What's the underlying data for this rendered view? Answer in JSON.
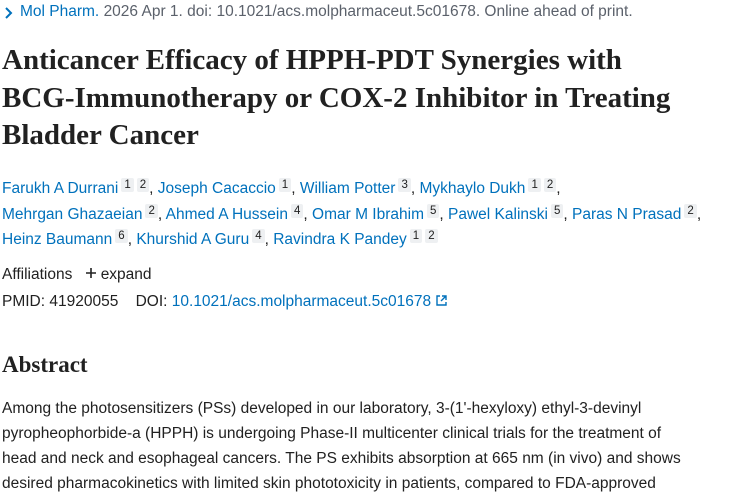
{
  "header": {
    "journal": "Mol Pharm.",
    "citation": "2026 Apr 1. doi: 10.1021/acs.molpharmaceut.5c01678. Online ahead of print."
  },
  "title": [
    "Anticancer Efficacy of HPPH-PDT Synergies with",
    "BCG-Immunotherapy or COX-2 Inhibitor in Treating",
    "Bladder Cancer"
  ],
  "authors_separator": ",",
  "author_lines": [
    [
      {
        "name": "Farukh A Durrani",
        "affiliations": [
          "1",
          "2"
        ]
      },
      {
        "name": "Joseph Cacaccio",
        "affiliations": [
          "1"
        ]
      },
      {
        "name": "William Potter",
        "affiliations": [
          "3"
        ]
      },
      {
        "name": "Mykhaylo Dukh",
        "affiliations": [
          "1",
          "2"
        ]
      }
    ],
    [
      {
        "name": "Mehrgan Ghazaeian",
        "affiliations": [
          "2"
        ]
      },
      {
        "name": "Ahmed A Hussein",
        "affiliations": [
          "4"
        ]
      },
      {
        "name": "Omar M Ibrahim",
        "affiliations": [
          "5"
        ]
      },
      {
        "name": "Pawel Kalinski",
        "affiliations": [
          "5"
        ]
      },
      {
        "name": "Paras N Prasad",
        "affiliations": [
          "2"
        ]
      }
    ],
    [
      {
        "name": "Heinz Baumann",
        "affiliations": [
          "6"
        ]
      },
      {
        "name": "Khurshid A Guru",
        "affiliations": [
          "4"
        ]
      },
      {
        "name": "Ravindra K Pandey",
        "affiliations": [
          "1",
          "2"
        ]
      }
    ]
  ],
  "affiliations": {
    "label": "Affiliations",
    "expand": "expand"
  },
  "identifiers": {
    "pmid_label": "PMID:",
    "pmid": "41920055",
    "doi_label": "DOI:",
    "doi": "10.1021/acs.molpharmaceut.5c01678"
  },
  "abstract": {
    "heading": "Abstract",
    "lines": [
      "Among the photosensitizers (PSs) developed in our laboratory, 3-(1'-hexyloxy) ethyl-3-devinyl",
      "pyropheophorbide-a (HPPH) is undergoing Phase-II multicenter clinical trials for the treatment of",
      "head and neck and esophageal cancers. The PS exhibits absorption at 665 nm (in vivo) and shows",
      "desired pharmacokinetics with limited skin phototoxicity in patients, compared to FDA-approved"
    ]
  }
}
